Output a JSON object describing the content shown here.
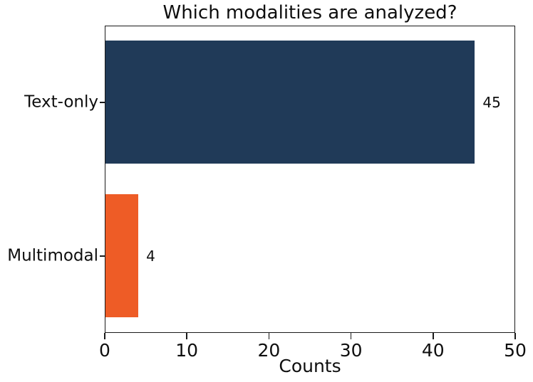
{
  "chart_data": {
    "type": "bar",
    "orientation": "horizontal",
    "title": "Which modalities are analyzed?",
    "xlabel": "Counts",
    "categories": [
      "Text-only",
      "Multimodal"
    ],
    "values": [
      45,
      4
    ],
    "value_labels": [
      "45",
      "4"
    ],
    "bar_colors": [
      "#203a58",
      "#ee5c26"
    ],
    "xlim": [
      0,
      50
    ],
    "xticks": [
      0,
      10,
      20,
      30,
      40,
      50
    ],
    "grid": false,
    "legend": "none",
    "spines": "box",
    "background": "#ffffff",
    "spine_color": "#1a1a1a"
  }
}
